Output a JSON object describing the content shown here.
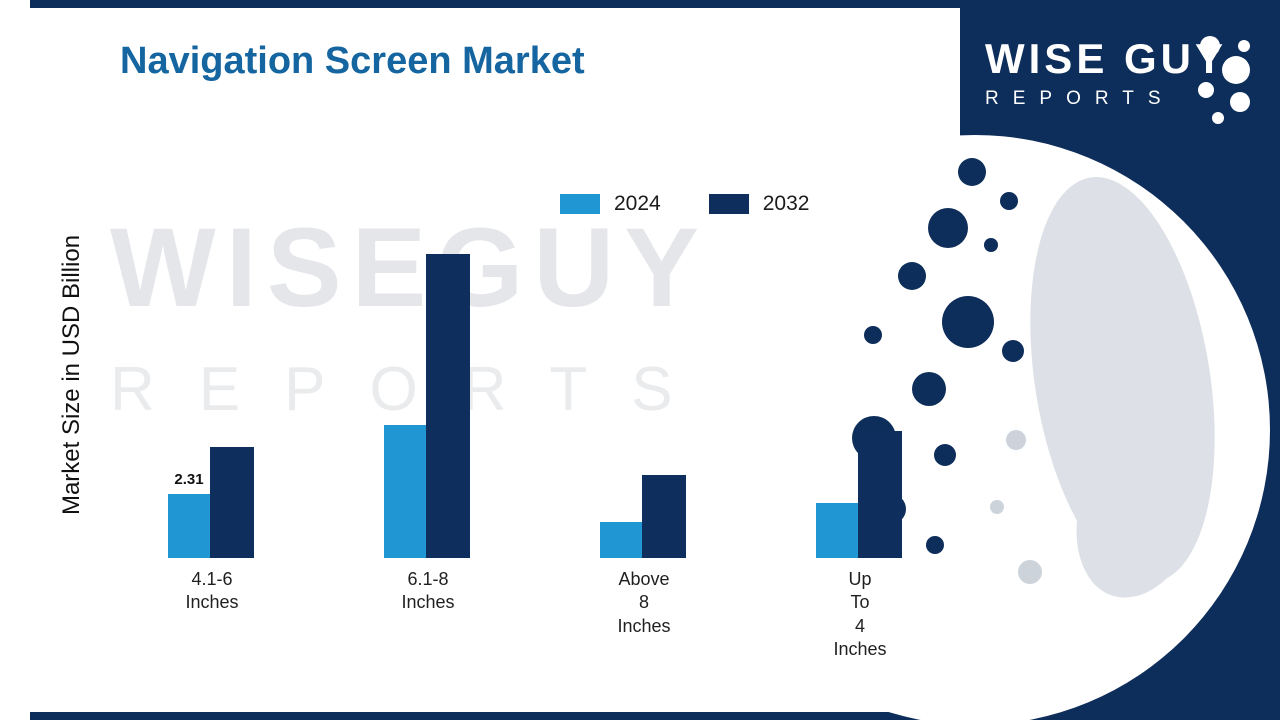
{
  "brand": {
    "line1": "WISE GUY",
    "line2": "REPORTS"
  },
  "watermark": {
    "line1": "WISEGUY",
    "line2": "REPORTS"
  },
  "colors": {
    "accent_blue": "#2096D3",
    "navy": "#0D2D5A",
    "title_blue": "#1565A0",
    "watermark_gray": "#E4E6E9"
  },
  "chart_data": {
    "type": "bar",
    "title": "Navigation Screen Market",
    "xlabel": "",
    "ylabel": "Market Size in USD Billion",
    "categories": [
      "4.1-6\nInches",
      "6.1-8\nInches",
      "Above\n8\nInches",
      "Up\nTo\n4\nInches"
    ],
    "series": [
      {
        "name": "2024",
        "color": "#2096D3",
        "values": [
          2.31,
          4.8,
          1.3,
          2.0
        ]
      },
      {
        "name": "2032",
        "color": "#0E2F5E",
        "values": [
          4.0,
          11.0,
          3.0,
          4.6
        ]
      }
    ],
    "ylim": [
      0,
      11.5
    ],
    "grid": false,
    "legend_position": "top",
    "annotations": [
      {
        "text": "2.31",
        "series": "2024",
        "category_index": 0
      }
    ]
  }
}
